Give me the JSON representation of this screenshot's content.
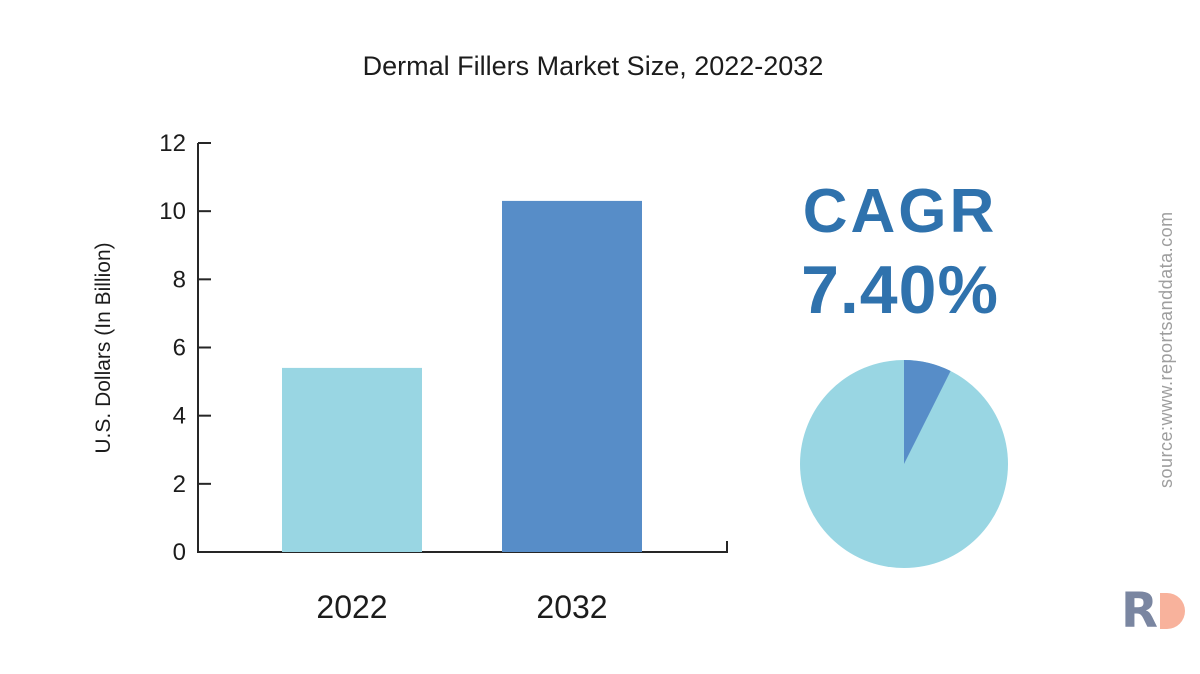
{
  "title": "Dermal Fillers Market Size, 2022-2032",
  "cagr": {
    "label": "CAGR",
    "value": "7.40%"
  },
  "source_note": "source:www.reportsanddata.com",
  "logo": {
    "letter": "R",
    "d_shape": "rounded-d"
  },
  "colors": {
    "bar_2022": "#99d6e3",
    "bar_2032": "#578dc8",
    "cagr_text": "#2f72ad",
    "axis": "#262626",
    "source_text": "#9e9e9e",
    "logo_r": "#7a86a1",
    "logo_d": "#f8b29c",
    "background": "#ffffff"
  },
  "chart_data": [
    {
      "type": "bar",
      "title": "Dermal Fillers Market Size, 2022-2032",
      "categories": [
        "2022",
        "2032"
      ],
      "values": [
        5.4,
        10.3
      ],
      "xlabel": "",
      "ylabel": "U.S. Dollars (In Billion)",
      "ylim": [
        0,
        12
      ],
      "y_ticks": [
        0,
        2,
        4,
        6,
        8,
        10,
        12
      ],
      "bar_colors": [
        "#99d6e3",
        "#578dc8"
      ],
      "grid": false,
      "legend_position": "none",
      "tick_direction": "in"
    },
    {
      "type": "pie",
      "title": "CAGR 7.40%",
      "slices": [
        {
          "label": "CAGR",
          "value": 7.4,
          "color": "#578dc8"
        },
        {
          "label": "remainder",
          "value": 92.6,
          "color": "#99d6e3"
        }
      ],
      "start_angle_deg": 0,
      "direction": "clockwise",
      "legend_position": "none"
    }
  ]
}
